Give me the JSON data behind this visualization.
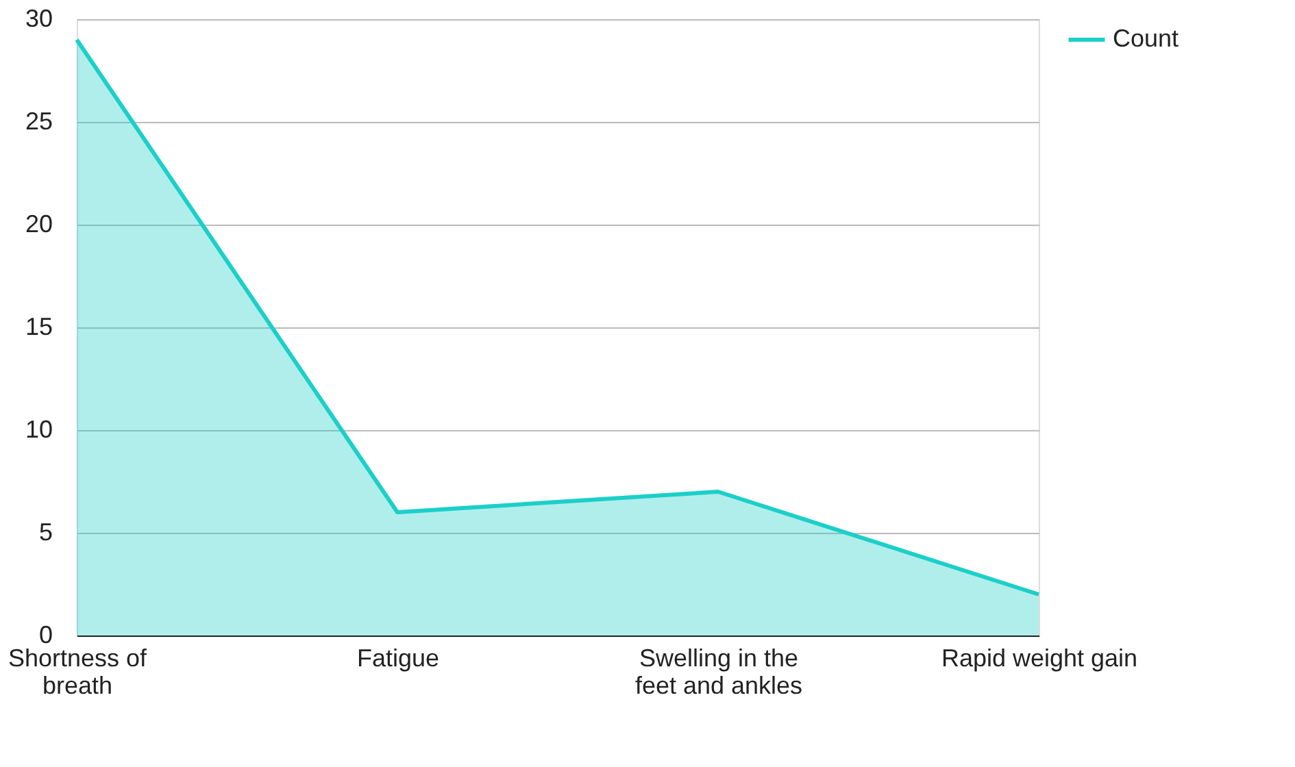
{
  "chart_data": {
    "type": "area",
    "categories": [
      "Shortness of breath",
      "Fatigue",
      "Swelling in the feet and ankles",
      "Rapid weight gain"
    ],
    "series": [
      {
        "name": "Count",
        "color": "#1ccfc9",
        "values": [
          29,
          6,
          7,
          2
        ]
      }
    ],
    "ylim": [
      0,
      30
    ],
    "yticks": [
      0,
      5,
      10,
      15,
      20,
      25,
      30
    ],
    "grid": "y",
    "legend": "top right"
  }
}
